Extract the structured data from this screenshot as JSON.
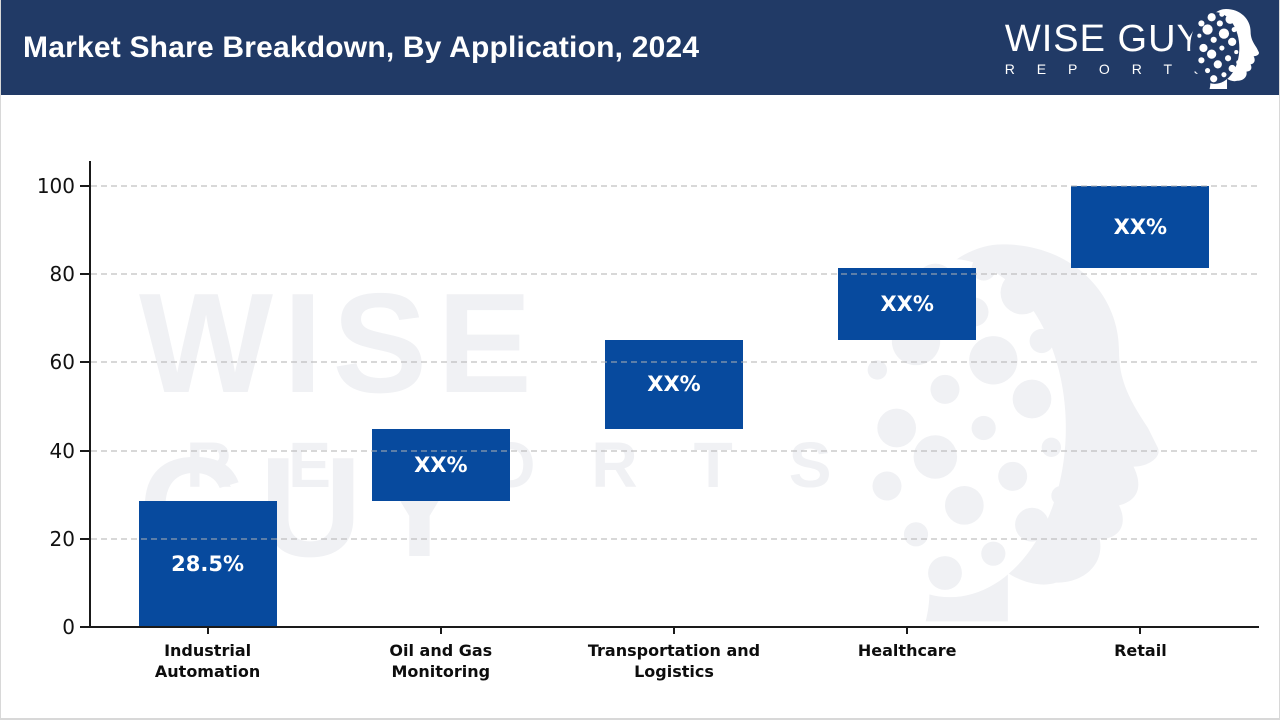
{
  "header": {
    "title": "Market Share Breakdown, By Application, 2024",
    "logo": {
      "line1": "WISE GUY",
      "line2": "R E P O R T S"
    }
  },
  "watermark": {
    "line1": "WISE GUY",
    "line2": "REPORTS"
  },
  "colors": {
    "header_bg": "#213a66",
    "bar": "#074a9e",
    "axis": "#1a1a1a",
    "grid_dash": "rgba(178,178,178,0.5)",
    "watermark": "#f0f1f4",
    "bar_label_text": "#ffffff",
    "tick_text": "#111111",
    "page_border": "#d8d8d8"
  },
  "chart_data": {
    "type": "bar",
    "subtype": "waterfall",
    "title": "Market Share Breakdown, By Application, 2024",
    "xlabel": "",
    "ylabel": "",
    "ylim": [
      0,
      105
    ],
    "grid": true,
    "legend": false,
    "y_ticks": [
      0,
      20,
      40,
      60,
      80,
      100
    ],
    "categories": [
      "Industrial Automation",
      "Oil and Gas Monitoring",
      "Transportation and Logistics",
      "Healthcare",
      "Retail"
    ],
    "categories_wrapped": [
      [
        "Industrial",
        "Automation"
      ],
      [
        "Oil and Gas",
        "Monitoring"
      ],
      [
        "Transportation and",
        "Logistics"
      ],
      [
        "Healthcare"
      ],
      [
        "Retail"
      ]
    ],
    "segments": [
      {
        "category": "Industrial Automation",
        "start": 0,
        "end": 28.5,
        "label": "28.5%"
      },
      {
        "category": "Oil and Gas Monitoring",
        "start": 28.5,
        "end": 45,
        "label": "XX%"
      },
      {
        "category": "Transportation and Logistics",
        "start": 45,
        "end": 65,
        "label": "XX%"
      },
      {
        "category": "Healthcare",
        "start": 65,
        "end": 81.5,
        "label": "XX%"
      },
      {
        "category": "Retail",
        "start": 81.5,
        "end": 100,
        "label": "XX%"
      }
    ],
    "bar_color": "#074a9e"
  }
}
